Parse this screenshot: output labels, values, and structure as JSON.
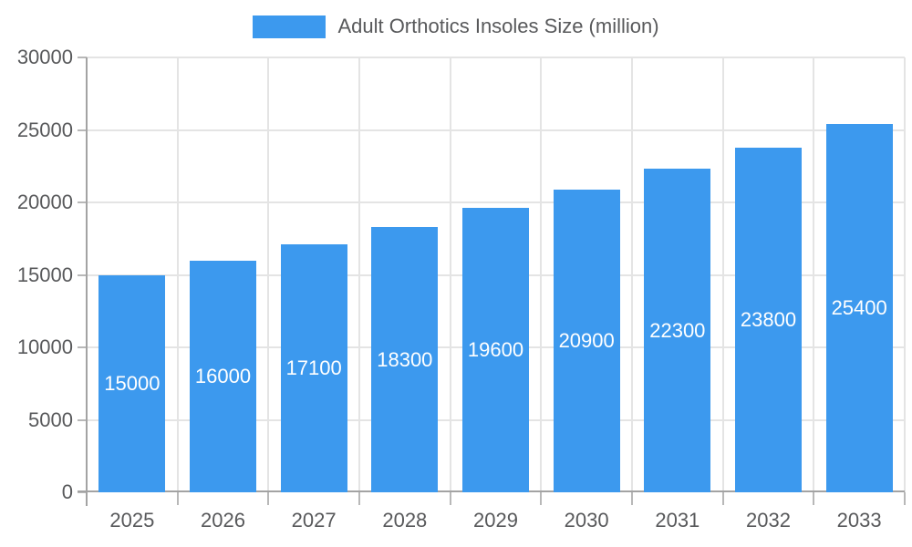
{
  "chart_data": {
    "type": "bar",
    "title": "",
    "legend": "Adult Orthotics Insoles Size (million)",
    "legend_position": "top",
    "categories": [
      "2025",
      "2026",
      "2027",
      "2028",
      "2029",
      "2030",
      "2031",
      "2032",
      "2033"
    ],
    "values": [
      15000,
      16000,
      17100,
      18300,
      19600,
      20900,
      22300,
      23800,
      25400
    ],
    "xlabel": "",
    "ylabel": "",
    "ylim": [
      0,
      30000
    ],
    "yticks": [
      0,
      5000,
      10000,
      15000,
      20000,
      25000,
      30000
    ],
    "grid": true,
    "value_labels": "inside-middle"
  },
  "colors": {
    "bar": "#3C99EE",
    "grid": "#E4E4E4",
    "axis": "#A3A3A3",
    "tick": "#B8B8B8",
    "text": "#58595B",
    "bar_label": "#FFFFFF",
    "background": "#FFFFFF"
  }
}
